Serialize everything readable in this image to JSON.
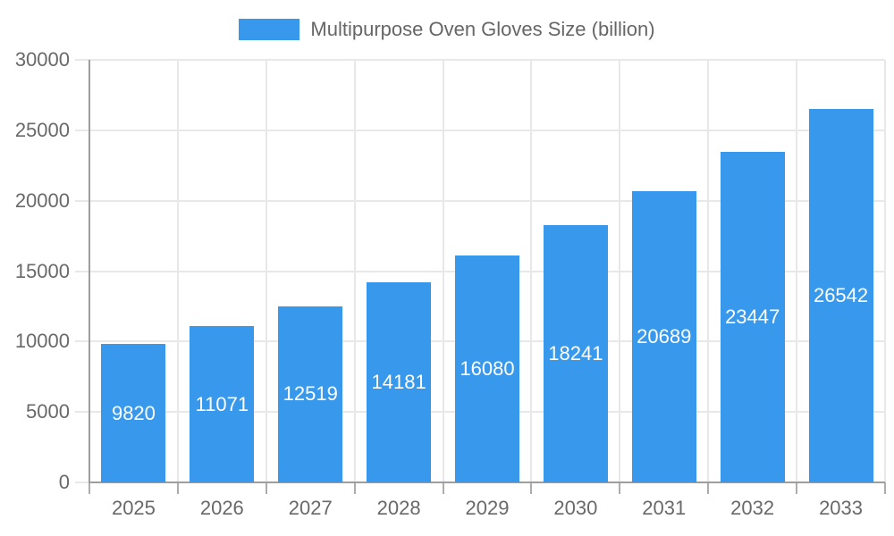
{
  "chart_data": {
    "type": "bar",
    "title": "Multipurpose Oven Gloves Size (billion)",
    "categories": [
      "2025",
      "2026",
      "2027",
      "2028",
      "2029",
      "2030",
      "2031",
      "2032",
      "2033"
    ],
    "values": [
      9820,
      11071,
      12519,
      14181,
      16080,
      18241,
      20689,
      23447,
      26542
    ],
    "xlabel": "",
    "ylabel": "",
    "ylim": [
      0,
      30000
    ],
    "yticks": [
      0,
      5000,
      10000,
      15000,
      20000,
      25000,
      30000
    ],
    "grid": true,
    "legend_position": "top-center",
    "bar_labels_inside": true,
    "colors": {
      "bar": "#3899EC",
      "bar_label_text": "#FFFFFF",
      "grid": "#E8E8E8",
      "axis": "#9E9E9E",
      "x_tick_mark": "#ADADAD",
      "tick_text": "#696969",
      "legend_text": "#666666"
    }
  }
}
